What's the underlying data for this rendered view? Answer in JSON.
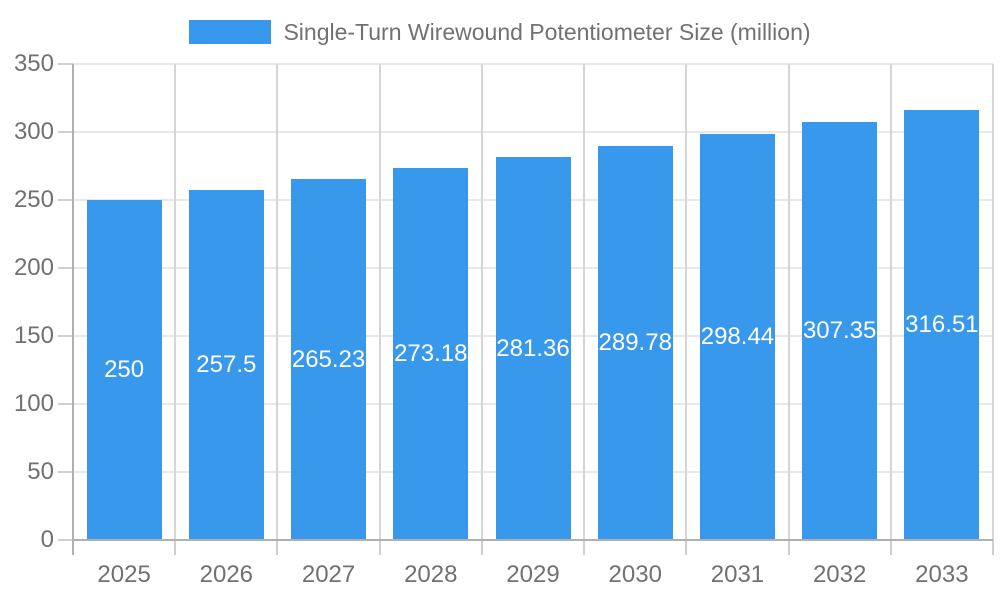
{
  "chart_data": {
    "type": "bar",
    "title": "Single-Turn Wirewound Potentiometer Size (million)",
    "categories": [
      "2025",
      "2026",
      "2027",
      "2028",
      "2029",
      "2030",
      "2031",
      "2032",
      "2033"
    ],
    "values": [
      250,
      257.5,
      265.23,
      273.18,
      281.36,
      289.78,
      298.44,
      307.35,
      316.51
    ],
    "value_labels": [
      "250",
      "257.5",
      "265.23",
      "273.18",
      "281.36",
      "289.78",
      "298.44",
      "307.35",
      "316.51"
    ],
    "xlabel": "",
    "ylabel": "",
    "ylim": [
      0,
      350
    ],
    "yticks": [
      0,
      50,
      100,
      150,
      200,
      250,
      300,
      350
    ],
    "grid": true,
    "legend_position": "top",
    "value_label_position": "center-of-bar",
    "colors": {
      "bar": "#3898EC",
      "grid_horizontal": "#E8E8E8",
      "grid_vertical": "#D6D6D6",
      "tick_mark": "#CFCFCF",
      "axis": "#B0B0B0",
      "tick_text": "#717171",
      "value_label_text": "#FFFFFF",
      "background": "#FFFFFF"
    }
  }
}
